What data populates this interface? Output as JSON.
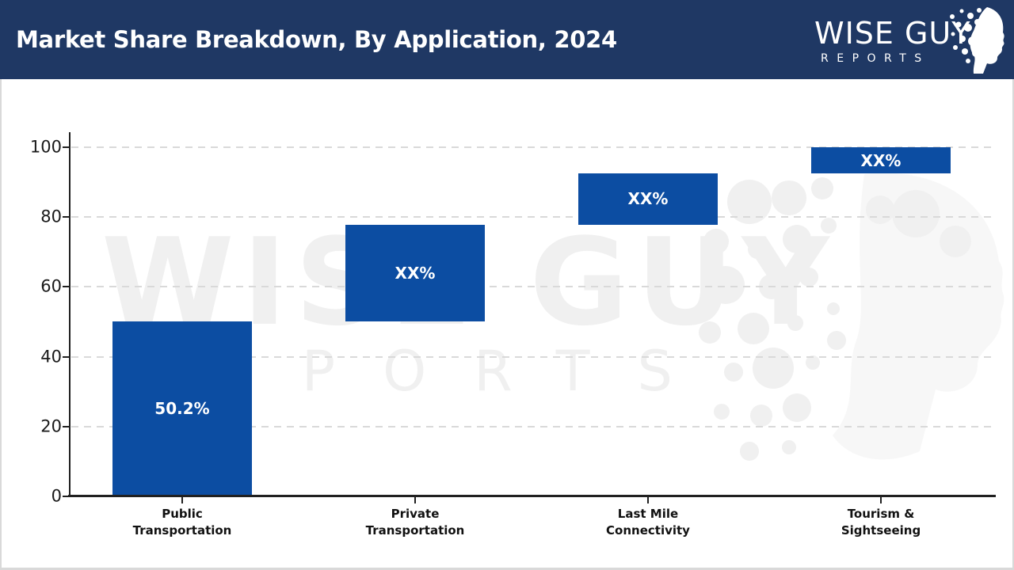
{
  "header": {
    "title": "Market Share Breakdown, By Application, 2024",
    "bg_color": "#1f3864",
    "logo": {
      "line1": "WISE GUY",
      "line2": "REPORTS"
    }
  },
  "watermark": {
    "line1": "WISE GUY",
    "line2": "REPORTS"
  },
  "chart_data": {
    "type": "bar",
    "subtype": "waterfall-stacked-segments",
    "title": "Market Share Breakdown, By Application, 2024",
    "categories": [
      {
        "line1": "Public",
        "line2": "Transportation"
      },
      {
        "line1": "Private",
        "line2": "Transportation"
      },
      {
        "line1": "Last Mile",
        "line2": "Connectivity"
      },
      {
        "line1": "Tourism &",
        "line2": "Sightseeing"
      }
    ],
    "segments": [
      {
        "label": "50.2%",
        "start": 0,
        "end": 50.2
      },
      {
        "label": "XX%",
        "start": 50.2,
        "end": 77.8
      },
      {
        "label": "XX%",
        "start": 77.8,
        "end": 92.5
      },
      {
        "label": "XX%",
        "start": 92.5,
        "end": 100
      }
    ],
    "xlabel": "",
    "ylabel": "",
    "ylim": [
      0,
      100
    ],
    "yticks": [
      0,
      20,
      40,
      60,
      80,
      100
    ],
    "grid": "horizontal-dashed",
    "legend": "none",
    "bar_color": "#0c4da2",
    "grid_color": "#d9d9d9"
  }
}
